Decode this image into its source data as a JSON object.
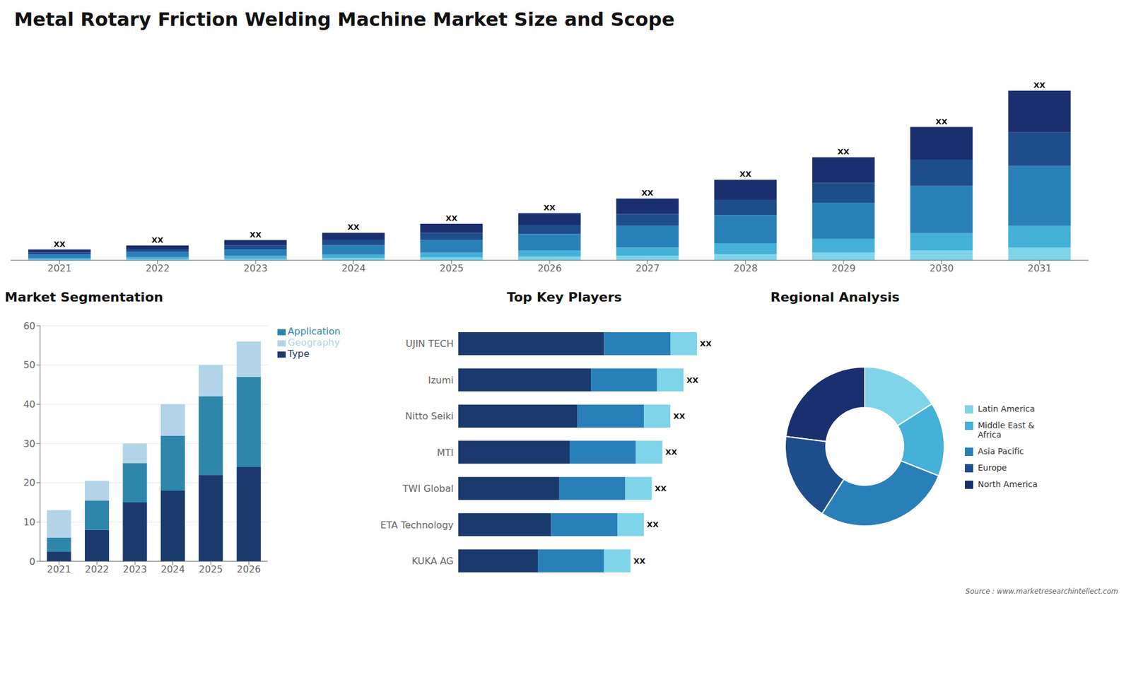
{
  "title": "Metal Rotary Friction Welding Machine Market Size and Scope",
  "annotations": [
    "Source : www.marketresearchintellect.com"
  ],
  "chart_data": [
    {
      "type": "bar",
      "stacked": true,
      "categories": [
        "2021",
        "2022",
        "2023",
        "2024",
        "2025",
        "2026",
        "2027",
        "2028",
        "2029",
        "2030",
        "2031"
      ],
      "series": [
        {
          "name": "Latin America",
          "color": "#7fd4ea",
          "values": [
            0.5,
            0.7,
            0.9,
            1.2,
            1.6,
            2.0,
            2.6,
            3.4,
            4.3,
            5.5,
            7.0
          ]
        },
        {
          "name": "Middle East & Africa",
          "color": "#45b0d8",
          "values": [
            0.8,
            1.1,
            1.5,
            2.0,
            2.7,
            3.5,
            4.5,
            6.0,
            7.5,
            9.5,
            12.0
          ]
        },
        {
          "name": "Asia Pacific",
          "color": "#2980b9",
          "values": [
            2.0,
            2.8,
            3.8,
            5.2,
            7.0,
            9.0,
            12.0,
            15.5,
            20.0,
            26.0,
            33.0
          ]
        },
        {
          "name": "Europe",
          "color": "#1e4d8c",
          "values": [
            1.2,
            1.6,
            2.2,
            3.0,
            3.8,
            5.0,
            6.5,
            8.5,
            11.0,
            14.5,
            18.5
          ]
        },
        {
          "name": "North America",
          "color": "#1a2f6e",
          "values": [
            1.5,
            2.0,
            2.8,
            3.8,
            5.0,
            6.5,
            8.5,
            11.0,
            14.0,
            18.0,
            23.0
          ]
        }
      ],
      "ylim": [
        0,
        116.875
      ],
      "tick_labels": "x",
      "annotations": [
        "XX",
        "XX",
        "XX",
        "XX",
        "XX",
        "XX",
        "XX",
        "XX",
        "XX",
        "XX",
        "XX"
      ]
    },
    {
      "type": "bar",
      "title": "Market Segmentation",
      "stacked": true,
      "categories": [
        "2021",
        "2022",
        "2023",
        "2024",
        "2025",
        "2026"
      ],
      "series": [
        {
          "name": "Type",
          "color": "#1a3a6e",
          "values": [
            2.5,
            8.0,
            15.0,
            18.0,
            22.0,
            24.0
          ]
        },
        {
          "name": "Application",
          "color": "#2e86ab",
          "values": [
            3.5,
            7.5,
            10.0,
            14.0,
            20.0,
            23.0
          ]
        },
        {
          "name": "Geography",
          "color": "#b3d4e8",
          "values": [
            7.0,
            5.0,
            5.0,
            8.0,
            8.0,
            9.0
          ]
        }
      ],
      "ylim": [
        0,
        60
      ],
      "yticks": [
        0,
        10,
        20,
        30,
        40,
        50,
        60
      ],
      "grid": true,
      "legend": "right"
    },
    {
      "type": "bar",
      "title": "Top Key Players",
      "orientation": "horizontal",
      "stacked": true,
      "categories": [
        "UJIN TECH",
        "Izumi",
        "Nitto Seiki",
        "MTI",
        "TWI Global",
        "ETA Technology",
        "KUKA AG"
      ],
      "series": [
        {
          "color": "#1a3a6e",
          "values": [
            0.55,
            0.5,
            0.45,
            0.42,
            0.38,
            0.35,
            0.3
          ]
        },
        {
          "color": "#2980b9",
          "values": [
            0.25,
            0.25,
            0.25,
            0.25,
            0.25,
            0.25,
            0.25
          ]
        },
        {
          "color": "#7fd4ea",
          "values": [
            0.1,
            0.1,
            0.1,
            0.1,
            0.1,
            0.1,
            0.1
          ]
        }
      ],
      "xlim": [
        0,
        1
      ],
      "tick_labels": "y",
      "annotations": [
        "XX",
        "XX",
        "XX",
        "XX",
        "XX",
        "XX",
        "XX"
      ]
    },
    {
      "type": "pie",
      "title": "Regional Analysis",
      "categories": [
        "North America",
        "Europe",
        "Asia Pacific",
        "Middle East &\nAfrica",
        "Latin America"
      ],
      "values": [
        23,
        18,
        28,
        15,
        16
      ],
      "colors": [
        "#1a2f6e",
        "#1e4d8c",
        "#2980b9",
        "#45b0d8",
        "#7fd4ea"
      ],
      "legend": "right"
    }
  ]
}
